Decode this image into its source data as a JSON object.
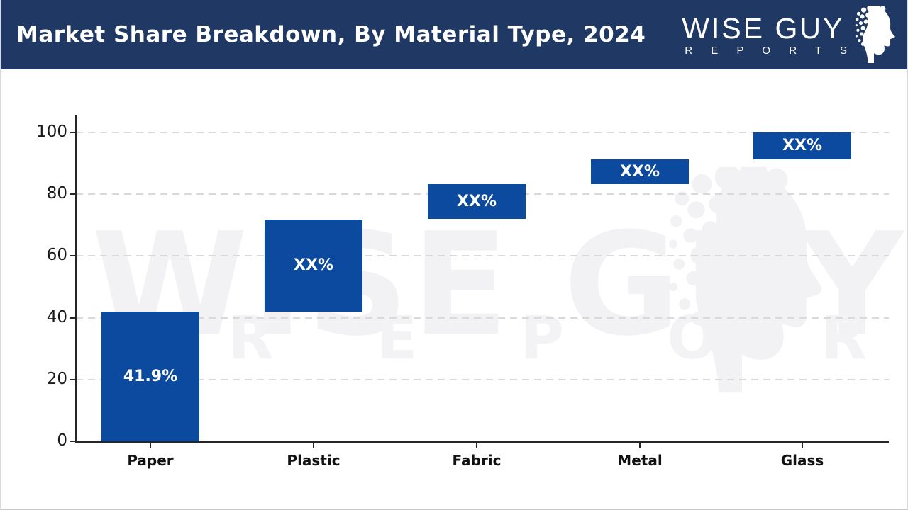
{
  "header": {
    "title": "Market Share Breakdown, By Material Type, 2024",
    "logo": {
      "brand_line1": "WISE GUY",
      "brand_line2": "R E P O R T S"
    }
  },
  "watermark": {
    "line1": "WISE GUY",
    "line2": "R E P O R T S"
  },
  "colors": {
    "header_bg": "#1f3864",
    "bar": "#0b4a9f",
    "bar_label": "#ffffff",
    "gridline": "#d9d9d9",
    "axis": "#262626",
    "watermark": "#f2f2f4"
  },
  "chart_data": {
    "type": "waterfall-bar",
    "title": "Market Share Breakdown, By Material Type, 2024",
    "categories": [
      "Paper",
      "Plastic",
      "Fabric",
      "Metal",
      "Glass"
    ],
    "series": [
      {
        "category": "Paper",
        "start": 0,
        "end": 41.9,
        "value": 41.9,
        "label": "41.9%"
      },
      {
        "category": "Plastic",
        "start": 41.9,
        "end": 71.9,
        "value": 30.0,
        "label": "XX%"
      },
      {
        "category": "Fabric",
        "start": 71.9,
        "end": 83.3,
        "value": 11.4,
        "label": "XX%"
      },
      {
        "category": "Metal",
        "start": 83.3,
        "end": 91.3,
        "value": 8.0,
        "label": "XX%"
      },
      {
        "category": "Glass",
        "start": 91.3,
        "end": 100.0,
        "value": 8.7,
        "label": "XX%"
      }
    ],
    "y_ticks": [
      0,
      20,
      40,
      60,
      80,
      100
    ],
    "ylim": [
      0,
      105
    ],
    "xlabel": "",
    "ylabel": "",
    "grid": "dashed-horizontal",
    "legend": "none"
  }
}
